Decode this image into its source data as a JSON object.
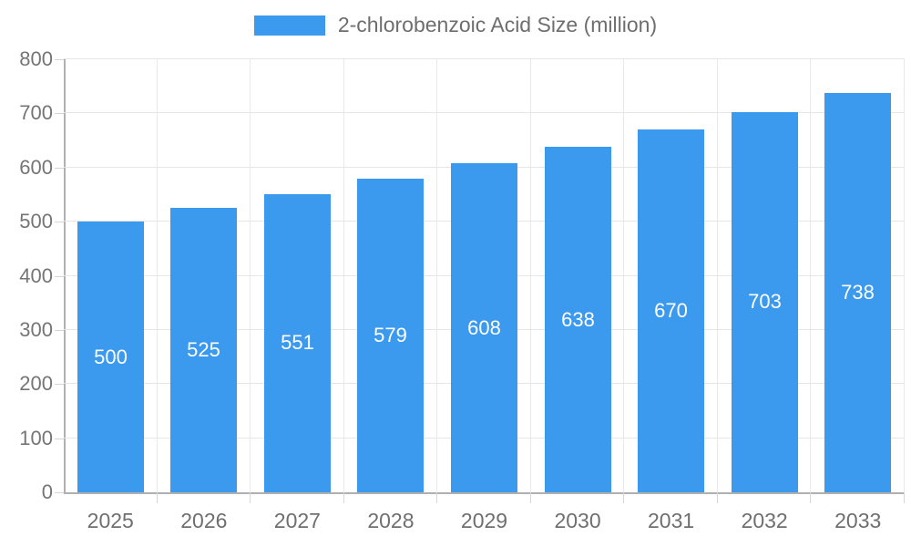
{
  "chart_data": {
    "type": "bar",
    "title": "2-chlorobenzoic Acid Size (million)",
    "categories": [
      "2025",
      "2026",
      "2027",
      "2028",
      "2029",
      "2030",
      "2031",
      "2032",
      "2033"
    ],
    "values": [
      500,
      525,
      551,
      579,
      608,
      638,
      670,
      703,
      738
    ],
    "xlabel": "",
    "ylabel": "",
    "ylim": [
      0,
      800
    ],
    "ytick_step": 100,
    "ytick_labels": [
      "0",
      "100",
      "200",
      "300",
      "400",
      "500",
      "600",
      "700",
      "800"
    ],
    "grid": true,
    "legend_position": "top-center",
    "value_labels": "inside-center",
    "colors": {
      "bar": "#3b99ee",
      "value_label": "#ffffff",
      "axis_line": "#b0b0b0",
      "gridline": "#e6e6e6",
      "tick_text": "#757575",
      "legend_text": "#6e6e6e",
      "background": "#ffffff"
    }
  }
}
